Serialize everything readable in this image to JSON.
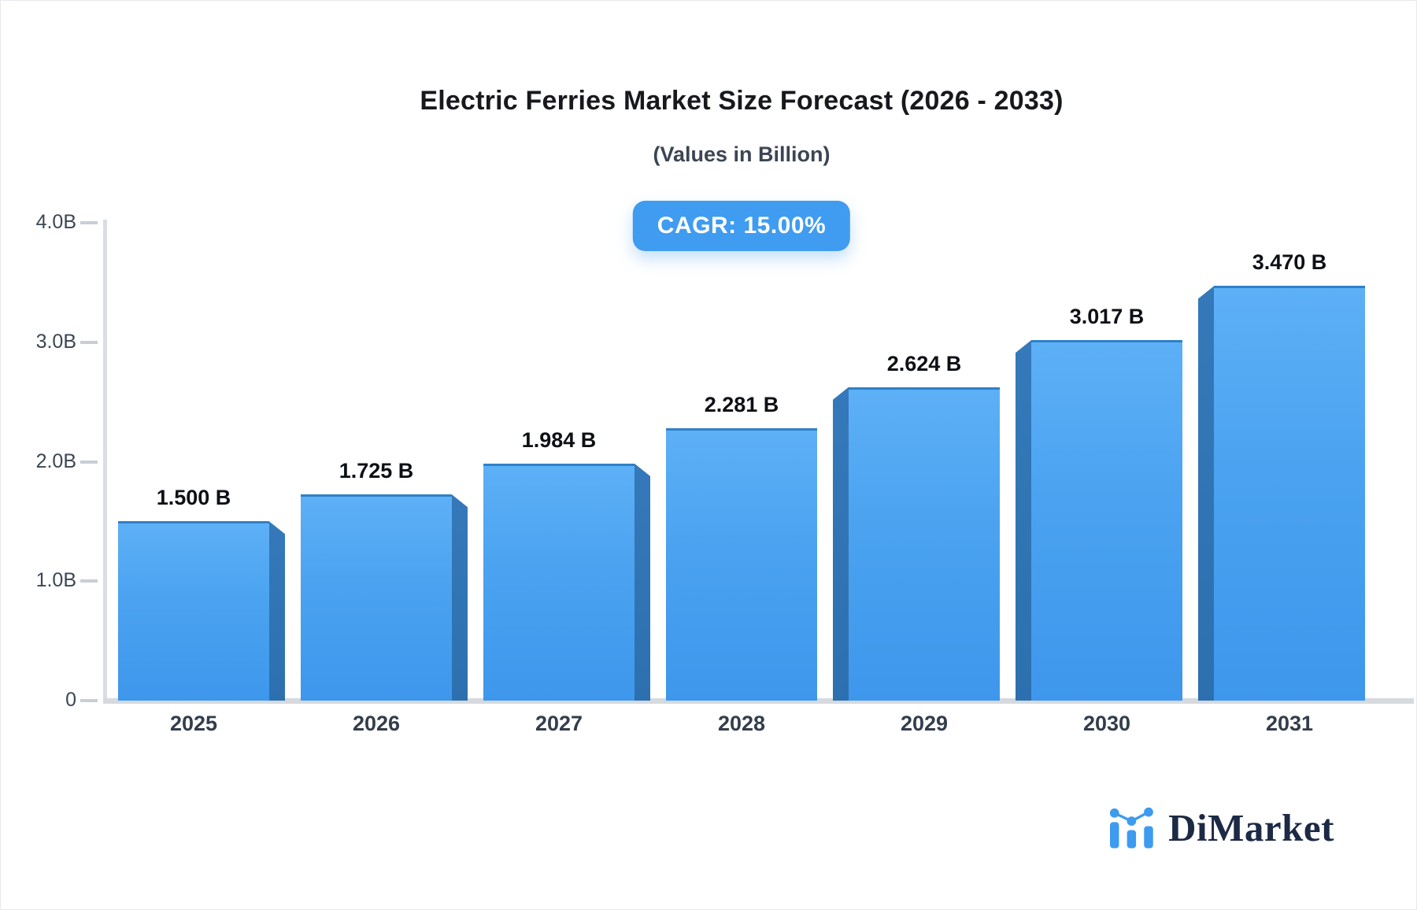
{
  "header": {
    "title": "Electric Ferries Market Size Forecast (2026 - 2033)",
    "subtitle": "(Values in Billion)",
    "cagr_badge": "CAGR: 15.00%"
  },
  "chart_data": {
    "type": "bar",
    "title": "Electric Ferries Market Size Forecast (2026 - 2033)",
    "subtitle": "(Values in Billion)",
    "cagr_text": "CAGR: 15.00%",
    "categories": [
      "2025",
      "2026",
      "2027",
      "2028",
      "2029",
      "2030",
      "2031"
    ],
    "values": [
      1.5,
      1.725,
      1.984,
      2.281,
      2.624,
      3.017,
      3.47
    ],
    "value_labels": [
      "1.500 B",
      "1.725 B",
      "1.984 B",
      "2.281 B",
      "2.624 B",
      "3.017 B",
      "3.470 B"
    ],
    "xlabel": "",
    "ylabel": "",
    "ylim": [
      0,
      4
    ],
    "y_ticks": [
      {
        "value": 4.0,
        "label": "4.0B"
      },
      {
        "value": 3.0,
        "label": "3.0B"
      },
      {
        "value": 2.0,
        "label": "2.0B"
      },
      {
        "value": 1.0,
        "label": "1.0B"
      },
      {
        "value": 0.0,
        "label": "0"
      }
    ],
    "grid": false,
    "legend": false,
    "style": "3d-perspective-bars",
    "bar_color": "#429bee",
    "bar_side_color": "#2d70af"
  },
  "branding": {
    "logo_text": "DiMarket",
    "logo_icon": "bar-chart-with-trend-dots",
    "logo_text_color": "#1c2a45",
    "logo_icon_color": "#3d9bf0"
  },
  "colors": {
    "accent": "#3f9cf0",
    "axis_line": "#d6dade",
    "tick_dash": "#c8ced5",
    "title_text": "#17191d",
    "muted_text": "#3c4654",
    "background": "#ffffff"
  }
}
